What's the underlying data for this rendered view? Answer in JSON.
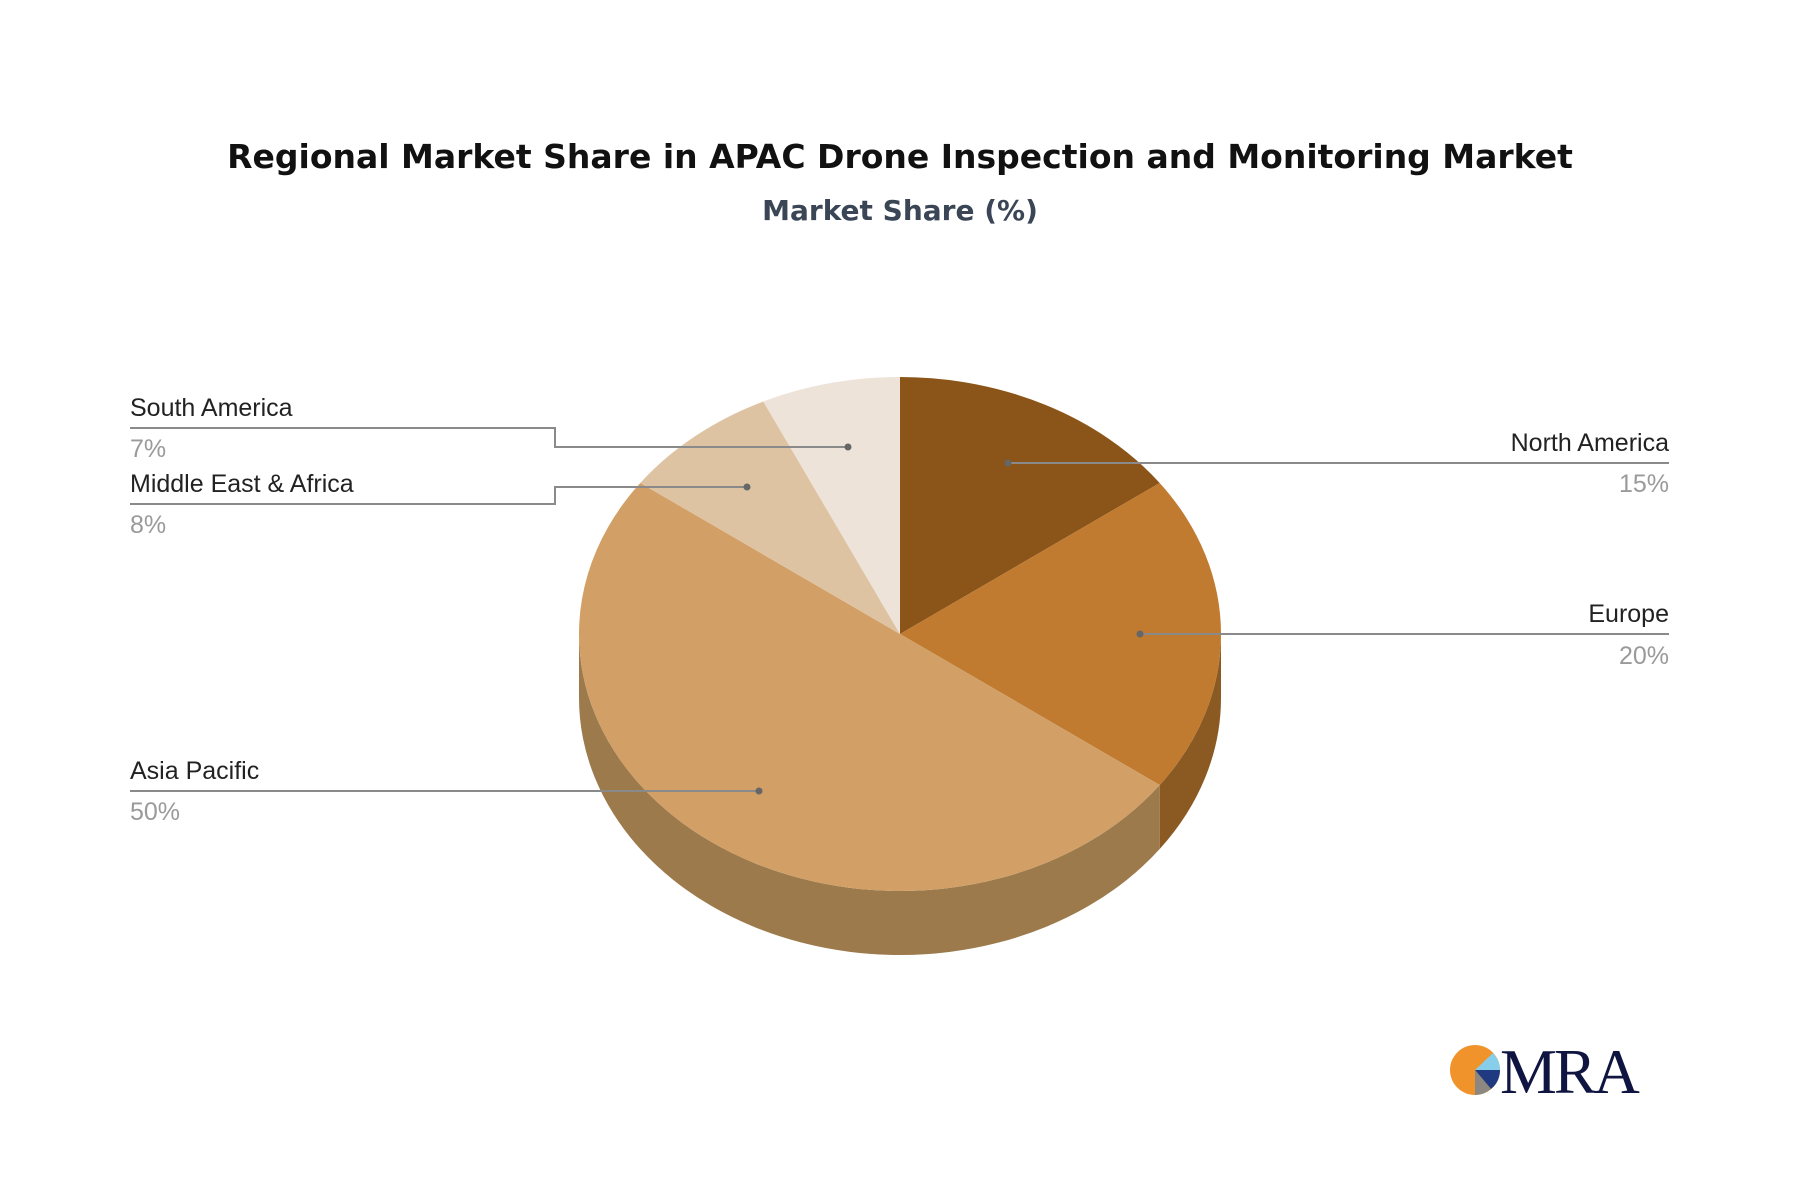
{
  "chart_data": {
    "type": "pie",
    "title": "Regional Market Share in APAC Drone Inspection and Monitoring Market",
    "subtitle": "Market Share (%)",
    "style": "3d",
    "slices": [
      {
        "label": "North America",
        "value": 15,
        "value_label": "15%",
        "color": "#8B5418",
        "side_color": "#6E4313"
      },
      {
        "label": "Europe",
        "value": 20,
        "value_label": "20%",
        "color": "#C07B30",
        "side_color": "#8B5A22"
      },
      {
        "label": "Asia Pacific",
        "value": 50,
        "value_label": "50%",
        "color": "#D2A066",
        "side_color": "#9C7A4C"
      },
      {
        "label": "Middle East & Africa",
        "value": 8,
        "value_label": "8%",
        "color": "#DEC3A3",
        "side_color": "#A89377"
      },
      {
        "label": "South America",
        "value": 7,
        "value_label": "7%",
        "color": "#EEE3D8",
        "side_color": "#B3A89D"
      }
    ]
  },
  "logo": {
    "text": "MRA",
    "colors": [
      "#F0932B",
      "#87CEEB",
      "#1F3A80",
      "#8C8780",
      "#0F1540"
    ]
  }
}
